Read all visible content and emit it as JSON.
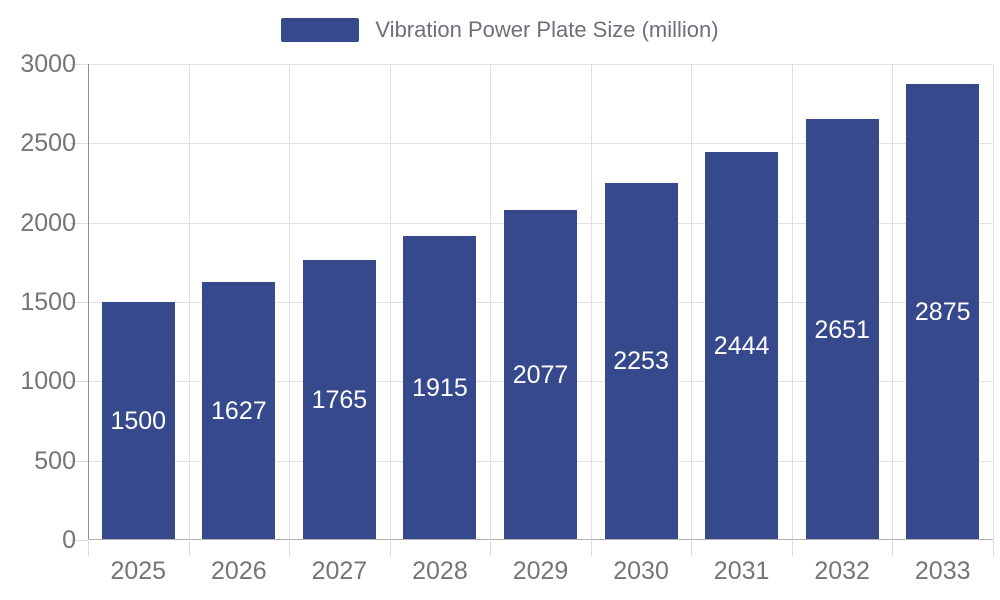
{
  "chart_data": {
    "type": "bar",
    "title": "Vibration Power Plate Size (million)",
    "categories": [
      "2025",
      "2026",
      "2027",
      "2028",
      "2029",
      "2030",
      "2031",
      "2032",
      "2033"
    ],
    "values": [
      1500,
      1627,
      1765,
      1915,
      2077,
      2253,
      2444,
      2651,
      2875
    ],
    "series_name": "Vibration Power Plate Size (million)",
    "xlabel": "",
    "ylabel": "",
    "ylim": [
      0,
      3000
    ],
    "y_ticks": [
      0,
      500,
      1000,
      1500,
      2000,
      2500,
      3000
    ],
    "grid": true,
    "legend_position": "top",
    "value_labels": "inside-center"
  },
  "colors": {
    "bar": "#36498c",
    "grid": "#e0e0e0",
    "axis_y": "#909090",
    "axis_x": "#b0b0b0",
    "tick": "#dcdcdc",
    "tick_text": "#757575",
    "legend_text": "#6e7079",
    "value_label": "#ffffff",
    "background": "#ffffff"
  }
}
